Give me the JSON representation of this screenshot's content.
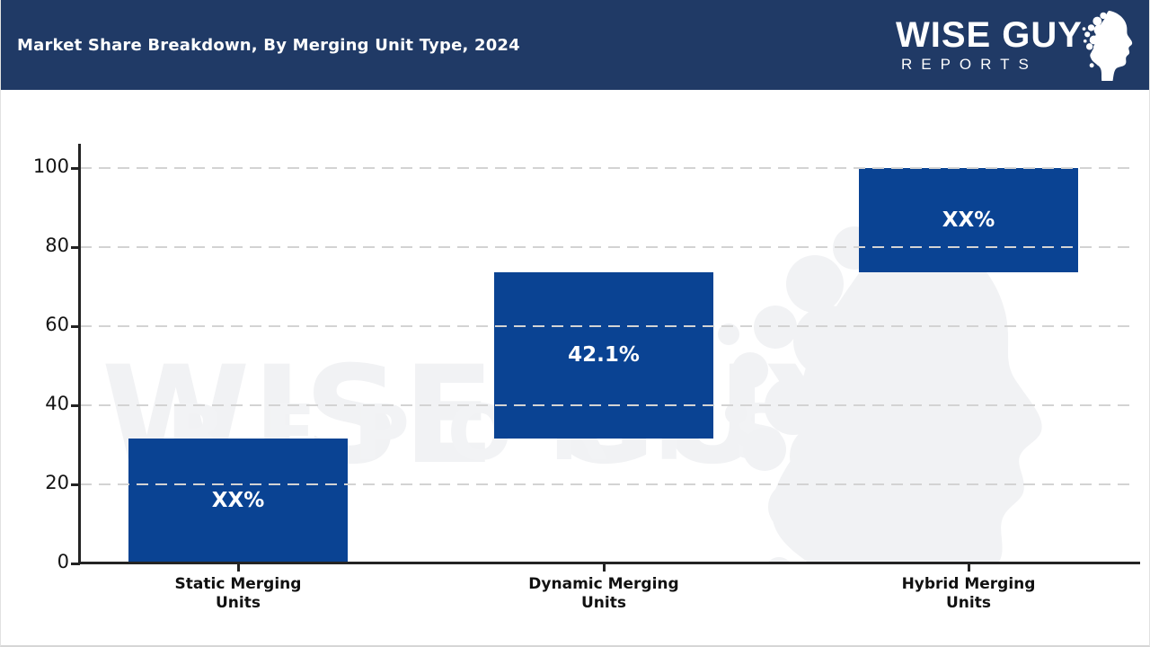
{
  "header": {
    "title": "Market Share Breakdown, By Merging Unit Type, 2024",
    "logo": {
      "line1": "WISE GUY",
      "line2": "REPORTS"
    }
  },
  "watermark": {
    "line1": "WISE GUY",
    "line2": "REPORTS"
  },
  "icons": {
    "logo_head": "dot-head-profile",
    "watermark_head": "dot-head-profile"
  },
  "colors": {
    "header_bg": "#203a66",
    "bar": "#0a4393",
    "grid": "#d3d3d3",
    "axis": "#242424",
    "bar_label": "#ffffff",
    "watermark": "#f1f2f4"
  },
  "chart_data": {
    "type": "bar",
    "subtype": "floating-segment bars (stacked percentage breakdown)",
    "title": "Market Share Breakdown, By Merging Unit Type, 2024",
    "categories": [
      {
        "label": "Static Merging Units",
        "lines": [
          "Static Merging",
          "Units"
        ]
      },
      {
        "label": "Dynamic Merging Units",
        "lines": [
          "Dynamic Merging",
          "Units"
        ]
      },
      {
        "label": "Hybrid Merging Units",
        "lines": [
          "Hybrid Merging",
          "Units"
        ]
      }
    ],
    "bars": [
      {
        "category": "Static Merging Units",
        "start": 0,
        "end": 31.6,
        "value": 31.6,
        "label": "XX%"
      },
      {
        "category": "Dynamic Merging Units",
        "start": 31.6,
        "end": 73.7,
        "value": 42.1,
        "label": "42.1%"
      },
      {
        "category": "Hybrid Merging Units",
        "start": 73.7,
        "end": 100,
        "value": 26.3,
        "label": "XX%"
      }
    ],
    "xlabel": "",
    "ylabel": "",
    "ylim": [
      0,
      100
    ],
    "yticks": [
      0,
      20,
      40,
      60,
      80,
      100
    ],
    "grid": "horizontal dashed, drawn above bars",
    "legend": "none"
  }
}
